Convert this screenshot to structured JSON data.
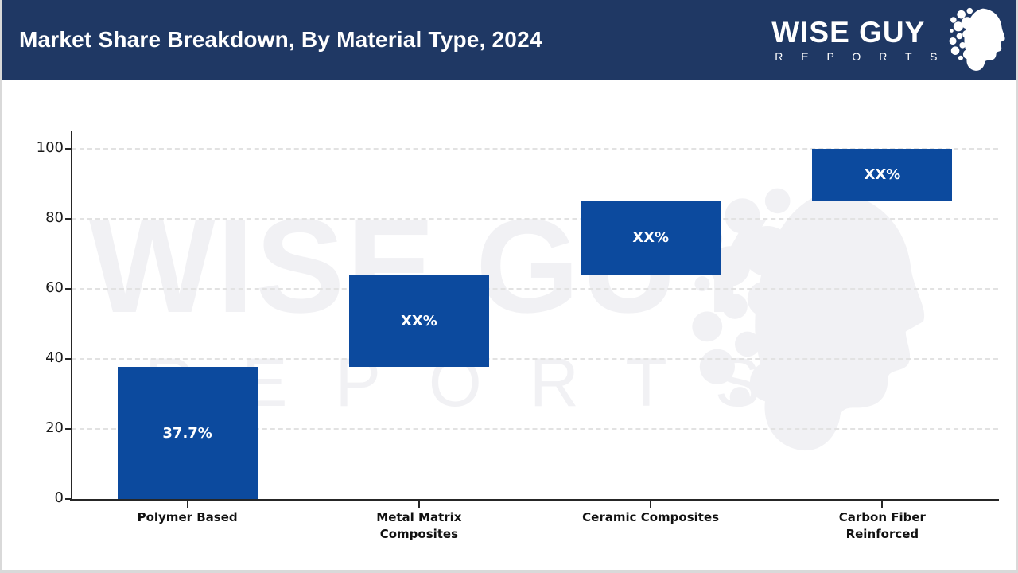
{
  "header": {
    "title": "Market Share Breakdown, By Material Type, 2024",
    "background_color": "#1f3864",
    "brand": {
      "line1": "WISE GUY",
      "line2": "R E P O R T S"
    }
  },
  "watermark": {
    "line1": "WISE GUY",
    "line2": "REPORTS"
  },
  "chart_data": {
    "type": "bar",
    "subtype": "waterfall-floating-bars",
    "title": "Market Share Breakdown, By Material Type, 2024",
    "categories": [
      "Polymer Based",
      "Metal Matrix\nComposites",
      "Ceramic Composites",
      "Carbon Fiber\nReinforced"
    ],
    "segments": [
      {
        "category": "Polymer Based",
        "start": 0,
        "end": 37.7,
        "label": "37.7%"
      },
      {
        "category": "Metal Matrix\nComposites",
        "start": 37.7,
        "end": 64.1,
        "label": "XX%"
      },
      {
        "category": "Ceramic Composites",
        "start": 64.1,
        "end": 85.2,
        "label": "XX%"
      },
      {
        "category": "Carbon Fiber\nReinforced",
        "start": 85.2,
        "end": 100,
        "label": "XX%"
      }
    ],
    "xlabel": "",
    "ylabel": "",
    "ylim": [
      0,
      100
    ],
    "yticks": [
      0,
      20,
      40,
      60,
      80,
      100
    ],
    "grid": "horizontal-dashed",
    "legend": "none",
    "bar_color": "#0c4a9e",
    "bar_value_label_color": "#ffffff"
  }
}
